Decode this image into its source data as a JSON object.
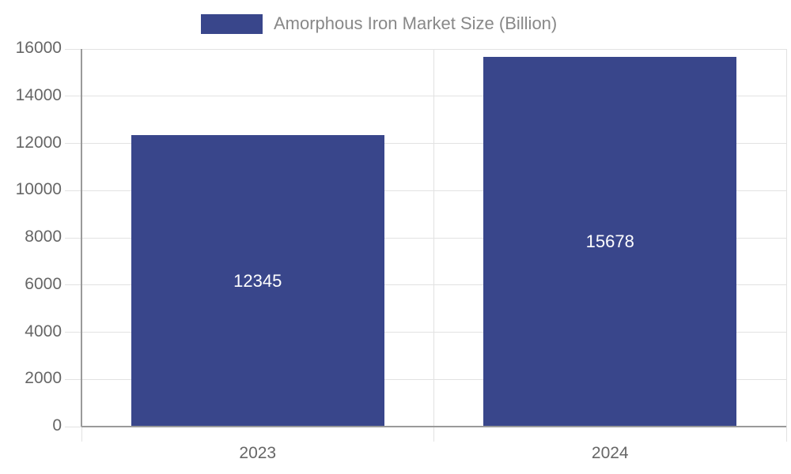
{
  "chart_data": {
    "type": "bar",
    "title": "Amorphous Iron Market Size (Billion)",
    "categories": [
      "2023",
      "2024"
    ],
    "series": [
      {
        "name": "Amorphous Iron Market Size (Billion)",
        "values": [
          12345,
          15678
        ]
      }
    ],
    "values": [
      12345,
      15678
    ],
    "bar_labels": [
      "12345",
      "15678"
    ],
    "xlabel": "",
    "ylabel": "",
    "ylim": [
      0,
      16000
    ],
    "yticks": [
      0,
      2000,
      4000,
      6000,
      8000,
      10000,
      12000,
      14000,
      16000
    ],
    "grid": true,
    "legend_position": "top",
    "colors": {
      "bar": "#39468B",
      "gridline": "#e2e2e2",
      "axis_line": "#9a9a9a",
      "tick_text": "#666666",
      "legend_text": "#888888",
      "bar_label_text": "#ffffff",
      "background": "#ffffff"
    }
  },
  "legend": {
    "label": "Amorphous Iron Market Size (Billion)"
  }
}
